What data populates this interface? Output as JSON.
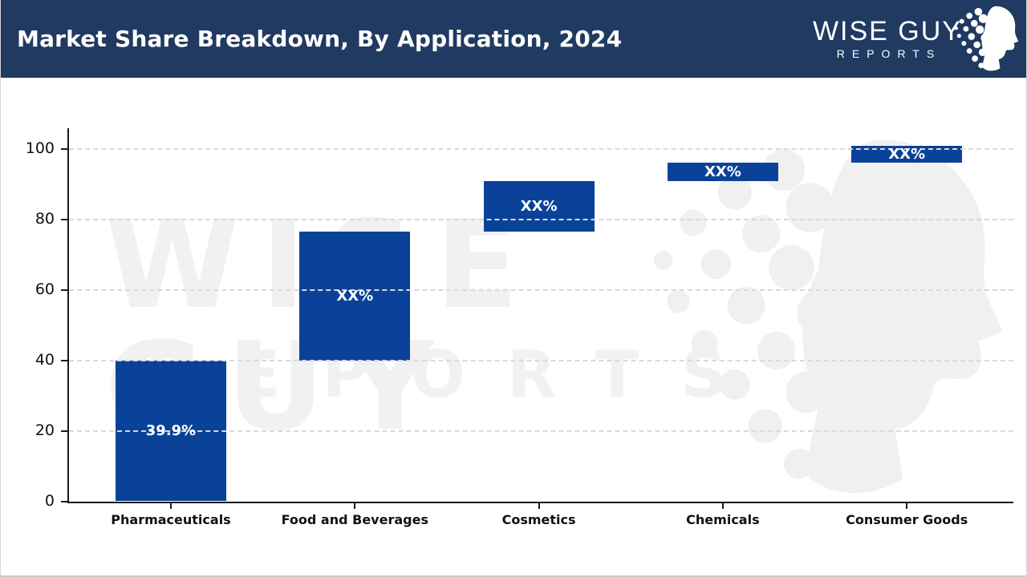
{
  "header": {
    "title": "Market Share Breakdown, By Application, 2024",
    "logo": {
      "line1": "WISE GUY",
      "line2": "REPORTS"
    },
    "bg_color": "#203a61"
  },
  "watermark": {
    "line1": "WISE GUY",
    "line2": "REPORTS"
  },
  "chart_data": {
    "type": "bar",
    "subtype": "waterfall",
    "title": "Market Share Breakdown, By Application, 2024",
    "categories": [
      "Pharmaceuticals",
      "Food and Beverages",
      "Cosmetics",
      "Chemicals",
      "Consumer Goods"
    ],
    "segments": [
      {
        "category": "Pharmaceuticals",
        "start": 0,
        "end": 39.9,
        "increment": 39.9,
        "label": "39.9%"
      },
      {
        "category": "Food and Beverages",
        "start": 39.9,
        "end": 76.5,
        "increment": 36.6,
        "label": "XX%"
      },
      {
        "category": "Cosmetics",
        "start": 76.5,
        "end": 90.8,
        "increment": 14.3,
        "label": "XX%"
      },
      {
        "category": "Chemicals",
        "start": 90.8,
        "end": 96.2,
        "increment": 5.4,
        "label": "XX%"
      },
      {
        "category": "Consumer Goods",
        "start": 96.2,
        "end": 100.8,
        "increment": 4.6,
        "label": "XX%"
      }
    ],
    "yticks": [
      0,
      20,
      40,
      60,
      80,
      100
    ],
    "ylim": [
      0,
      106
    ],
    "xlabel": "",
    "ylabel": "",
    "bar_color": "#0a4299",
    "grid": "horizontal-dashed",
    "gridline_color": "#d9d9d9",
    "legend": "none"
  }
}
